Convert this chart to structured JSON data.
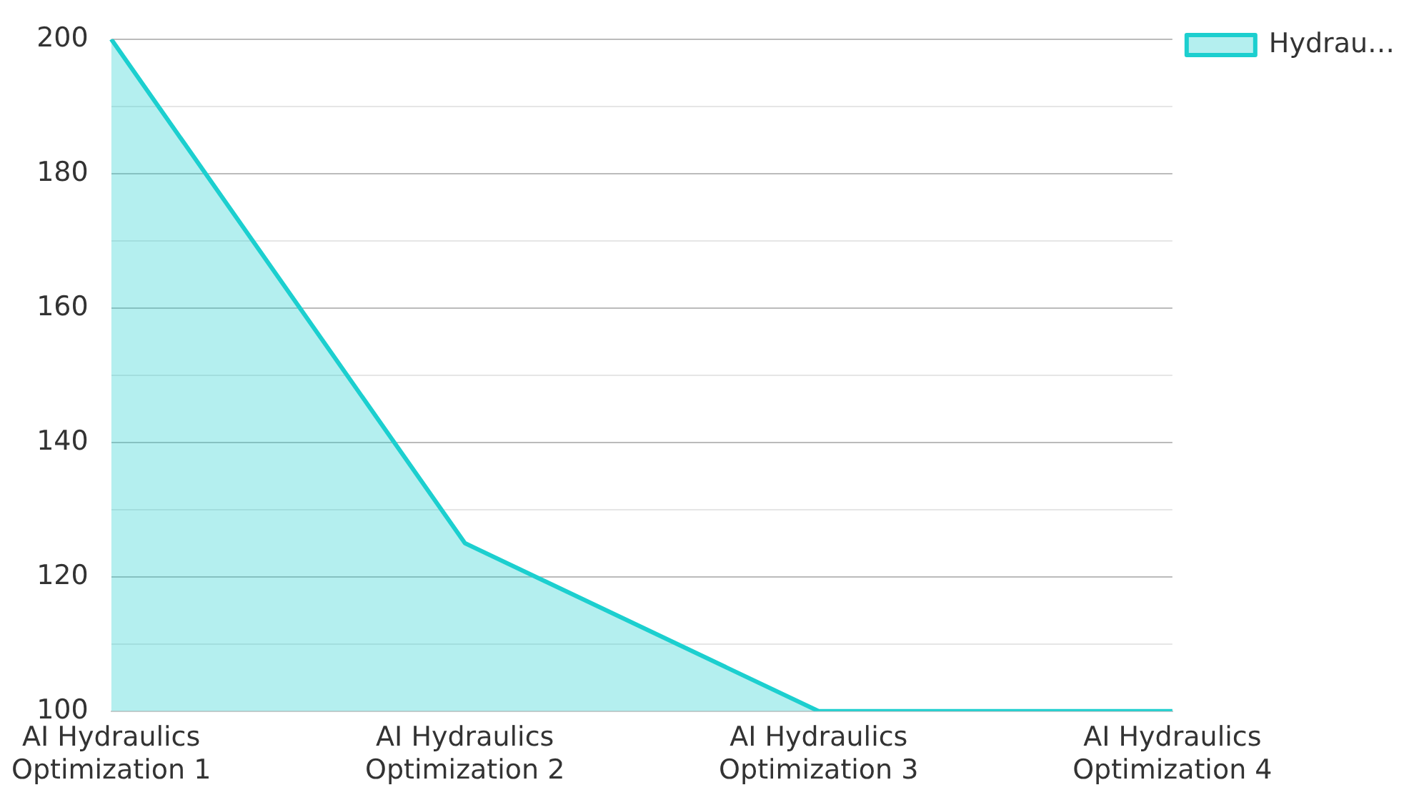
{
  "chart_data": {
    "type": "area",
    "categories": [
      "AI Hydraulics Optimization 1",
      "AI Hydraulics Optimization 2",
      "AI Hydraulics Optimization 3",
      "AI Hydraulics Optimization 4"
    ],
    "series": [
      {
        "name": "Hydrau…",
        "color": "#1ccfcf",
        "values": [
          200,
          125,
          100,
          100
        ]
      }
    ],
    "ylim": [
      100,
      200
    ],
    "yticks": [
      100,
      {
        "value": 110,
        "label": null
      },
      120,
      {
        "value": 130,
        "label": null
      },
      140,
      {
        "value": 150,
        "label": null
      },
      160,
      {
        "value": 170,
        "label": null
      },
      180,
      {
        "value": 190,
        "label": null
      },
      200
    ],
    "grid": "y",
    "legend": "top right"
  }
}
